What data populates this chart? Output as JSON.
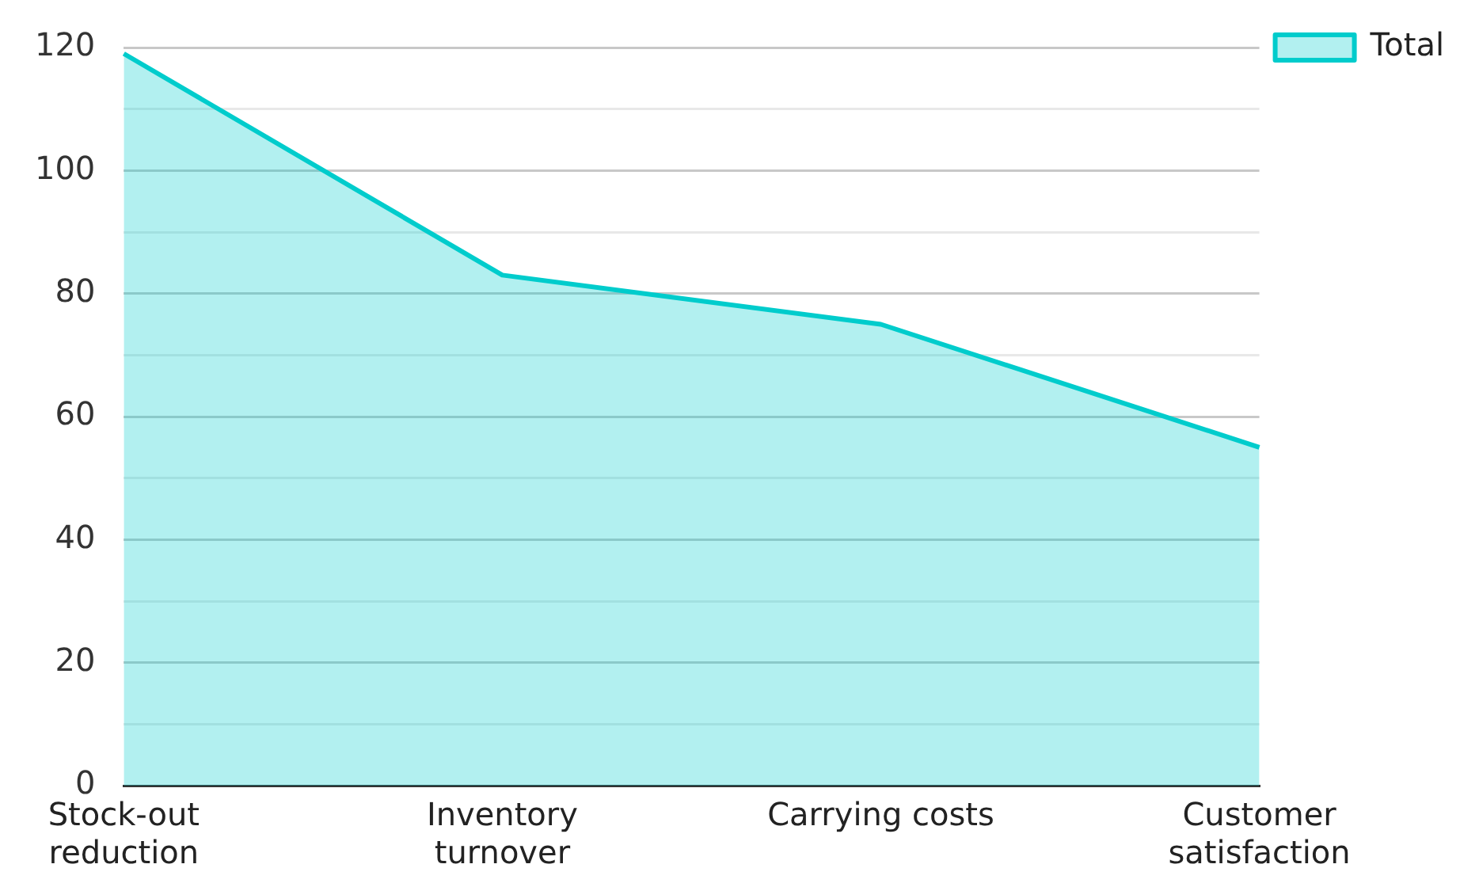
{
  "chart_data": {
    "type": "area",
    "categories": [
      "Stock-out reduction",
      "Inventory turnover",
      "Carrying costs",
      "Customer satisfaction"
    ],
    "series": [
      {
        "name": "Total",
        "color": "#00cccc",
        "values": [
          119,
          83,
          75,
          55
        ]
      }
    ],
    "ylim": [
      0,
      120
    ],
    "yticks": [
      0,
      {
        "value": 10,
        "label": null
      },
      20,
      {
        "value": 30,
        "label": null
      },
      40,
      {
        "value": 50,
        "label": null
      },
      60,
      {
        "value": 70,
        "label": null
      },
      80,
      {
        "value": 90,
        "label": null
      },
      100,
      {
        "value": 110,
        "label": null
      },
      120
    ],
    "grid": "y",
    "legend": "top right"
  }
}
